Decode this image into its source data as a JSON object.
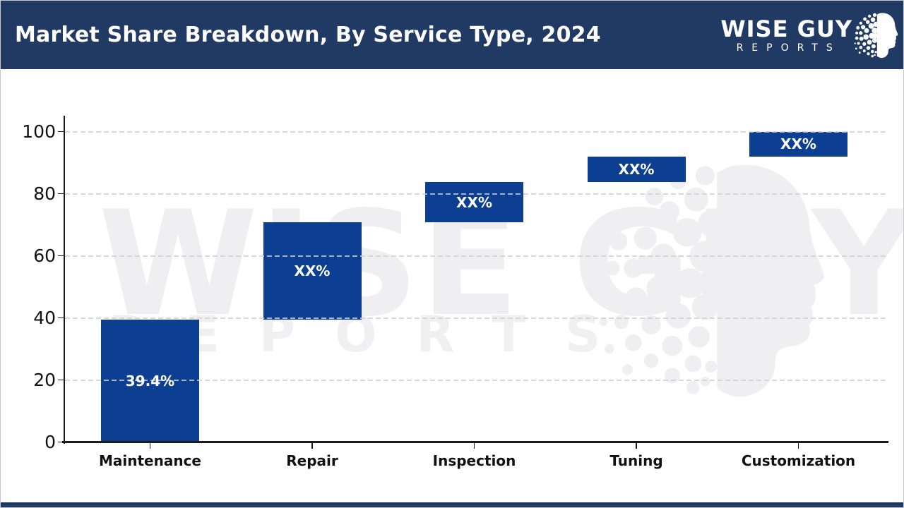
{
  "header": {
    "title": "Market Share Breakdown, By Service Type, 2024"
  },
  "logo": {
    "wise_guy": "WISE GUY",
    "reports": "REPORTS"
  },
  "chart_data": {
    "type": "bar",
    "subtype": "waterfall-floating-bars",
    "title": "Market Share Breakdown, By Service Type, 2024",
    "categories": [
      "Maintenance",
      "Repair",
      "Inspection",
      "Tuning",
      "Customization"
    ],
    "series": [
      {
        "name": "Market share (%)",
        "segments": [
          {
            "category": "Maintenance",
            "start": 0,
            "end": 39.4,
            "value": 39.4,
            "label": "39.4%"
          },
          {
            "category": "Repair",
            "start": 39.4,
            "end": 70.8,
            "value": 31.4,
            "label": "XX%"
          },
          {
            "category": "Inspection",
            "start": 70.8,
            "end": 83.7,
            "value": 12.9,
            "label": "XX%"
          },
          {
            "category": "Tuning",
            "start": 83.7,
            "end": 91.9,
            "value": 8.2,
            "label": "XX%"
          },
          {
            "category": "Customization",
            "start": 91.9,
            "end": 100,
            "value": 8.1,
            "label": "XX%"
          }
        ]
      }
    ],
    "xlabel": "",
    "ylabel": "",
    "ylim": [
      0,
      105
    ],
    "yticks": [
      0,
      20,
      40,
      60,
      80,
      100
    ],
    "grid": "horizontal dashed",
    "legend": "none",
    "colors": {
      "bar": "#0c3e92",
      "bar_label": "#ffffff",
      "axis": "#1a1a1a",
      "gridline": "#cfcfcf",
      "header_bg": "#213a64",
      "watermark": "#efeff1"
    }
  }
}
